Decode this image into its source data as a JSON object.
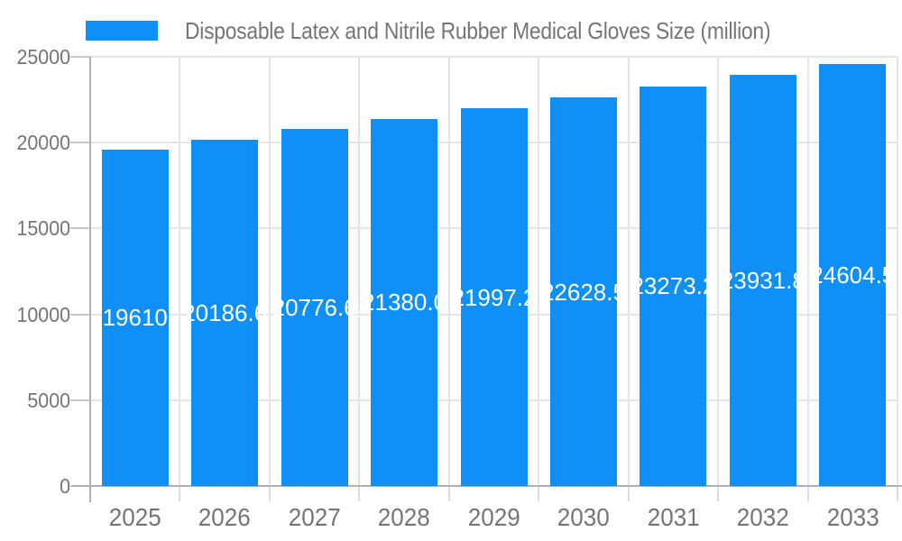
{
  "chart_data": {
    "type": "bar",
    "title": "Disposable Latex and Nitrile Rubber Medical Gloves Size (million)",
    "categories": [
      "2025",
      "2026",
      "2027",
      "2028",
      "2029",
      "2030",
      "2031",
      "2032",
      "2033"
    ],
    "values": [
      19610,
      20186.6,
      20776.6,
      21380.0,
      21997.2,
      22628.5,
      23273.2,
      23931.8,
      24604.5
    ],
    "value_labels": [
      "19610",
      "20186.6",
      "20776.6",
      "21380.0",
      "21997.2",
      "22628.5",
      "23273.2",
      "23931.8",
      "24604.5"
    ],
    "xlabel": "",
    "ylabel": "",
    "ylim": [
      0,
      25000
    ],
    "yticks": [
      0,
      5000,
      10000,
      15000,
      20000,
      25000
    ],
    "ytick_labels": [
      "0",
      "5000",
      "10000",
      "15000",
      "20000",
      "25000"
    ],
    "grid": true,
    "legend_position": "top-left",
    "colors": {
      "bar": "#0e90f8",
      "grid": "#e6e6e6",
      "axis": "#b0b0b0",
      "tick": "#c9c9c9",
      "label": "#757575",
      "bar_label": "#ffffff",
      "background": "#ffffff"
    }
  }
}
